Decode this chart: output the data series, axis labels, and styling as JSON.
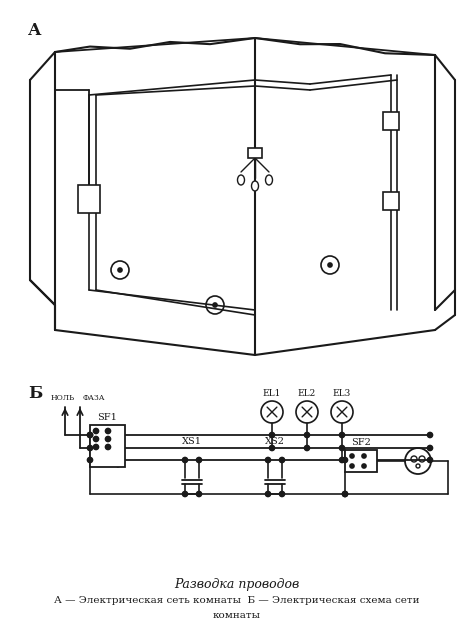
{
  "title": "Разводка проводов",
  "caption_line1": "А — Электрическая сеть комнаты  Б — Электрическая схема сети",
  "caption_line2": "комнаты",
  "label_A": "А",
  "label_B": "Б",
  "bg_color": "#ffffff",
  "line_color": "#1a1a1a",
  "text_color": "#1a1a1a",
  "label_sf1": "SF1",
  "label_xs1": "XS1",
  "label_xs2": "XS2",
  "label_sf2": "SF2",
  "label_el1": "EL1",
  "label_el2": "EL2",
  "label_el3": "EL3",
  "label_nol": "НОЛЬ",
  "label_faza": "ФАЗА"
}
